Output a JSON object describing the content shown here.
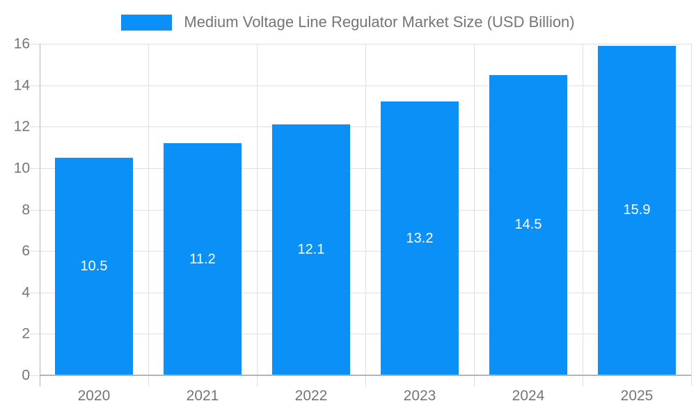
{
  "chart_data": {
    "type": "bar",
    "title": "Medium Voltage Line Regulator Market Size (USD Billion)",
    "categories": [
      "2020",
      "2021",
      "2022",
      "2023",
      "2024",
      "2025"
    ],
    "values": [
      10.5,
      11.2,
      12.1,
      13.2,
      14.5,
      15.9
    ],
    "value_labels": [
      "10.5",
      "11.2",
      "12.1",
      "13.2",
      "14.5",
      "15.9"
    ],
    "xlabel": "",
    "ylabel": "",
    "ylim": [
      0,
      16
    ],
    "yticks": [
      0,
      2,
      4,
      6,
      8,
      10,
      12,
      14,
      16
    ],
    "grid": true,
    "legend_position": "top",
    "value_label_position": "center-inside",
    "colors": {
      "bar": "#0b90f8",
      "grid": "#e0e0e0",
      "axis": "#b3b3b3",
      "text": "#757575",
      "value_label": "#ffffff",
      "background": "#ffffff"
    }
  }
}
